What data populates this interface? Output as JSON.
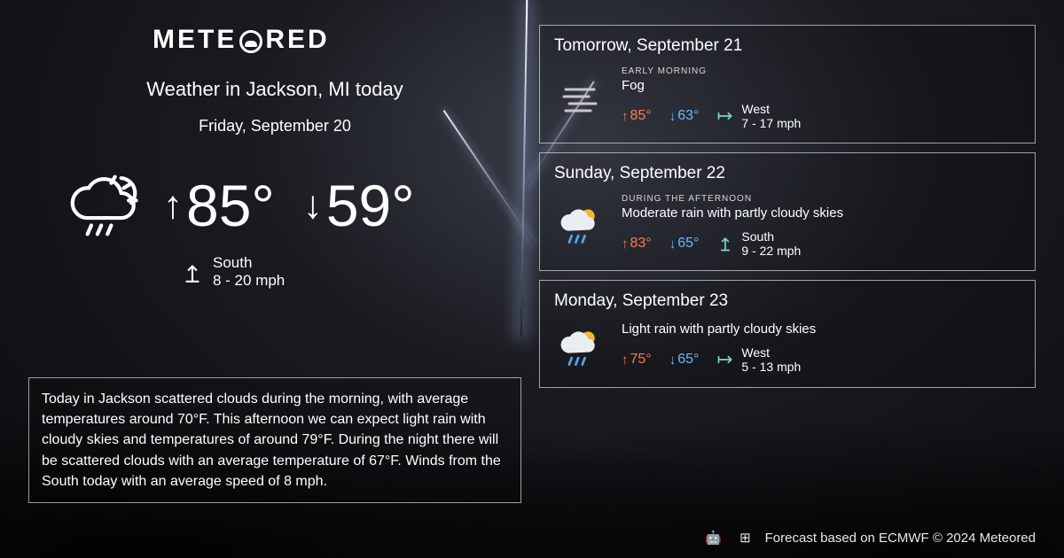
{
  "brand": "METEORED",
  "title": "Weather in Jackson, MI today",
  "date": "Friday, September 20",
  "current": {
    "hi": "85°",
    "lo": "59°",
    "wind_dir": "South",
    "wind_speed": "8 - 20 mph",
    "condition_icon": "rain-partly-cloudy"
  },
  "description": "Today in Jackson scattered clouds during the morning, with average temperatures around 70°F. This afternoon we can expect light rain with cloudy skies and temperatures of around 79°F. During the night there will be scattered clouds with an average temperature of 67°F. Winds from the South today with an average speed of 8 mph.",
  "forecast": [
    {
      "date": "Tomorrow, September 21",
      "time_label": "EARLY MORNING",
      "condition": "Fog",
      "icon": "fog",
      "hi": "85°",
      "lo": "63°",
      "wind_dir": "West",
      "wind_speed": "7 - 17 mph",
      "wind_color": "#7fd9c8"
    },
    {
      "date": "Sunday, September 22",
      "time_label": "DURING THE AFTERNOON",
      "condition": "Moderate rain with partly cloudy skies",
      "icon": "rain-partly-cloudy",
      "hi": "83°",
      "lo": "65°",
      "wind_dir": "South",
      "wind_speed": "9 - 22 mph",
      "wind_color": "#7fd9c8"
    },
    {
      "date": "Monday, September 23",
      "time_label": "",
      "condition": "Light rain with partly cloudy skies",
      "icon": "rain-partly-cloudy",
      "hi": "75°",
      "lo": "65°",
      "wind_dir": "West",
      "wind_speed": "5 - 13 mph",
      "wind_color": "#7fd9c8"
    }
  ],
  "footer": "Forecast based on ECMWF © 2024 Meteored",
  "colors": {
    "hi": "#ff7a4d",
    "lo": "#6bb7ff",
    "wind": "#7fd9c8",
    "border": "rgba(255,255,255,0.6)",
    "text": "#ffffff"
  }
}
